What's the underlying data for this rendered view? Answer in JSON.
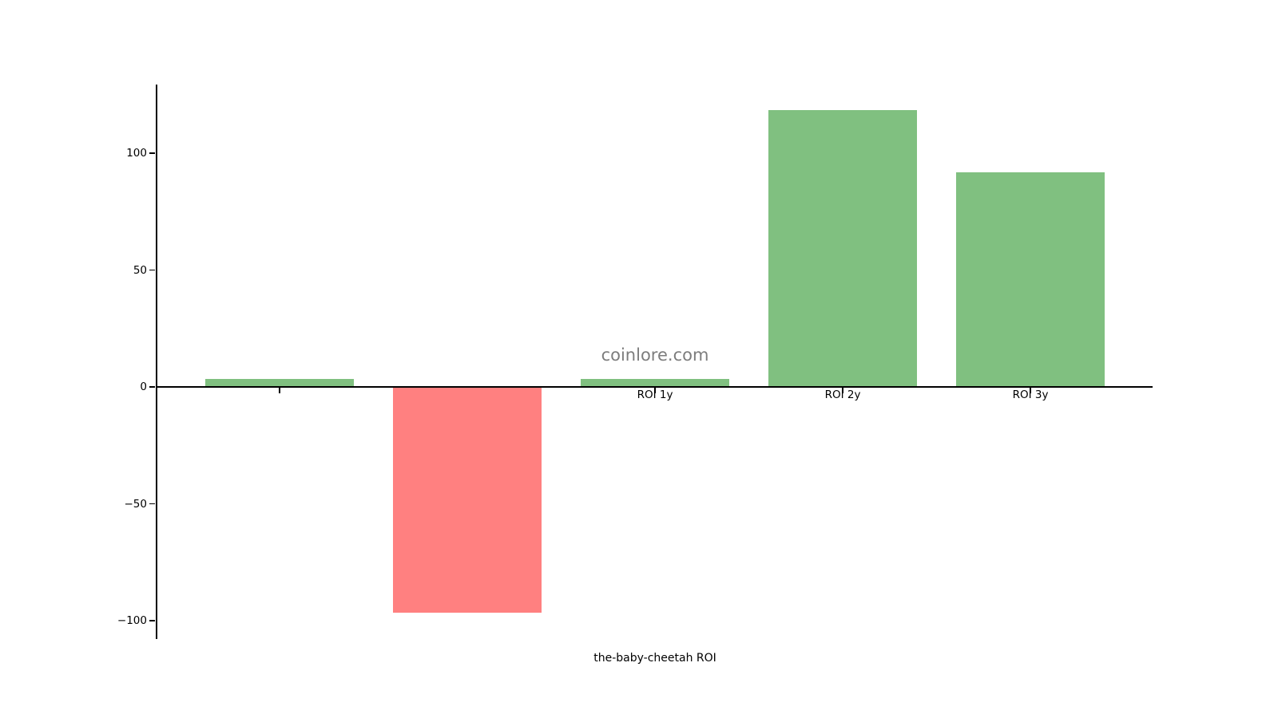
{
  "chart_data": {
    "type": "bar",
    "title": "",
    "xlabel": "the-baby-cheetah ROI",
    "ylabel": "",
    "categories": [
      "",
      "",
      "ROI 1y",
      "ROI 2y",
      "ROI 3y"
    ],
    "values": [
      3.3,
      -96.7,
      3.3,
      118.4,
      92
    ],
    "positive_color": "#80c080",
    "negative_color": "#ff8080",
    "bar_colors": [
      "#80c080",
      "#ff8080",
      "#80c080",
      "#80c080",
      "#80c080"
    ],
    "yticks": [
      100,
      50,
      0,
      -50,
      -100
    ],
    "ytick_labels": [
      "100",
      "50",
      "0",
      "−50",
      "−100"
    ],
    "ylim": [
      -107.8,
      129.4
    ],
    "grid": false,
    "legend_position": "none",
    "axis_color": "#000000",
    "text_color": "#000000",
    "background_color": "#ffffff",
    "watermark": "coinlore.com",
    "watermark_color": "#7d7d7d"
  }
}
